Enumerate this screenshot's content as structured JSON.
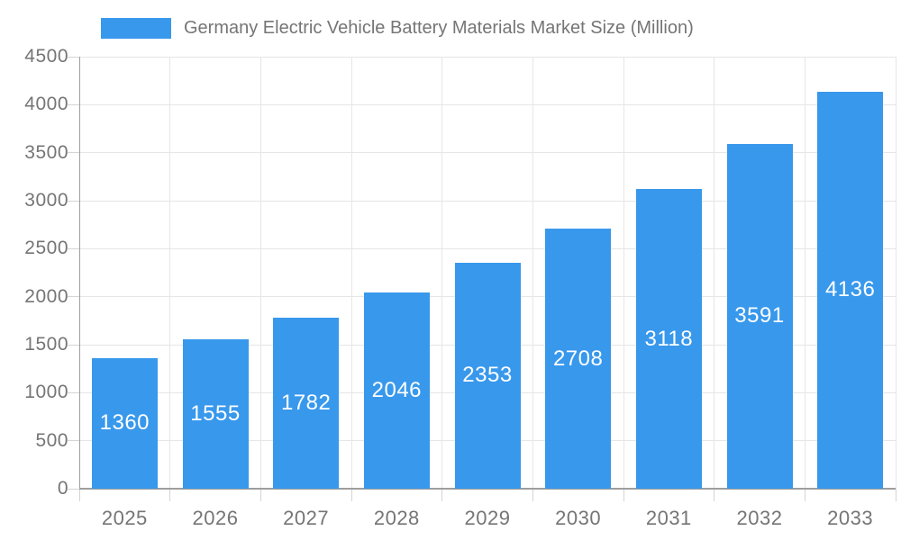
{
  "chart_data": {
    "type": "bar",
    "title": "Germany Electric Vehicle Battery Materials Market Size (Million)",
    "categories": [
      "2025",
      "2026",
      "2027",
      "2028",
      "2029",
      "2030",
      "2031",
      "2032",
      "2033"
    ],
    "series": [
      {
        "name": "Germany Electric Vehicle Battery Materials Market Size (Million)",
        "values": [
          1360,
          1555,
          1782,
          2046,
          2353,
          2708,
          3118,
          3591,
          4136
        ]
      }
    ],
    "xlabel": "",
    "ylabel": "",
    "ylim": [
      0,
      4500
    ],
    "ytick_step": 500,
    "ytick_labels": [
      "0",
      "500",
      "1000",
      "1500",
      "2000",
      "2500",
      "3000",
      "3500",
      "4000",
      "4500"
    ],
    "grid": true,
    "legend_position": "top",
    "value_labels": "inside-center"
  },
  "colors": {
    "bar": "#3898ec",
    "value_label": "#ffffff",
    "axis_text": "#757575",
    "gridline": "#e6e6e6",
    "axis_line": "#9e9e9e",
    "background": "#ffffff"
  }
}
